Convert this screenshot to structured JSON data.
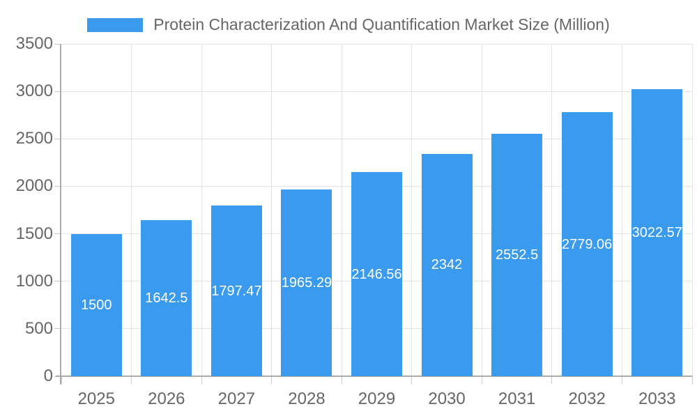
{
  "legend": {
    "series_label": "Protein Characterization And Quantification Market Size (Million)"
  },
  "colors": {
    "bar": "#3A9AED",
    "grid": "#E4E4E4",
    "axis": "#ABABAB",
    "tick": "#C9C9C9",
    "axis_text": "#666666",
    "bar_label_text": "#FFFFFF",
    "legend_text": "#666666",
    "background": "#FFFFFF"
  },
  "chart_data": {
    "type": "bar",
    "title": "Protein Characterization And Quantification Market Size (Million)",
    "categories": [
      "2025",
      "2026",
      "2027",
      "2028",
      "2029",
      "2030",
      "2031",
      "2032",
      "2033"
    ],
    "values": [
      1500,
      1642.5,
      1797.47,
      1965.29,
      2146.56,
      2342,
      2552.5,
      2779.06,
      3022.57
    ],
    "value_labels": [
      "1500",
      "1642.5",
      "1797.47",
      "1965.29",
      "2146.56",
      "2342",
      "2552.5",
      "2779.06",
      "3022.57"
    ],
    "xlabel": "",
    "ylabel": "",
    "ylim": [
      0,
      3500
    ],
    "ytick_step": 500,
    "yticks": [
      0,
      500,
      1000,
      1500,
      2000,
      2500,
      3000,
      3500
    ],
    "grid": true,
    "legend_position": "top",
    "bar_label_position": "center-inside"
  }
}
